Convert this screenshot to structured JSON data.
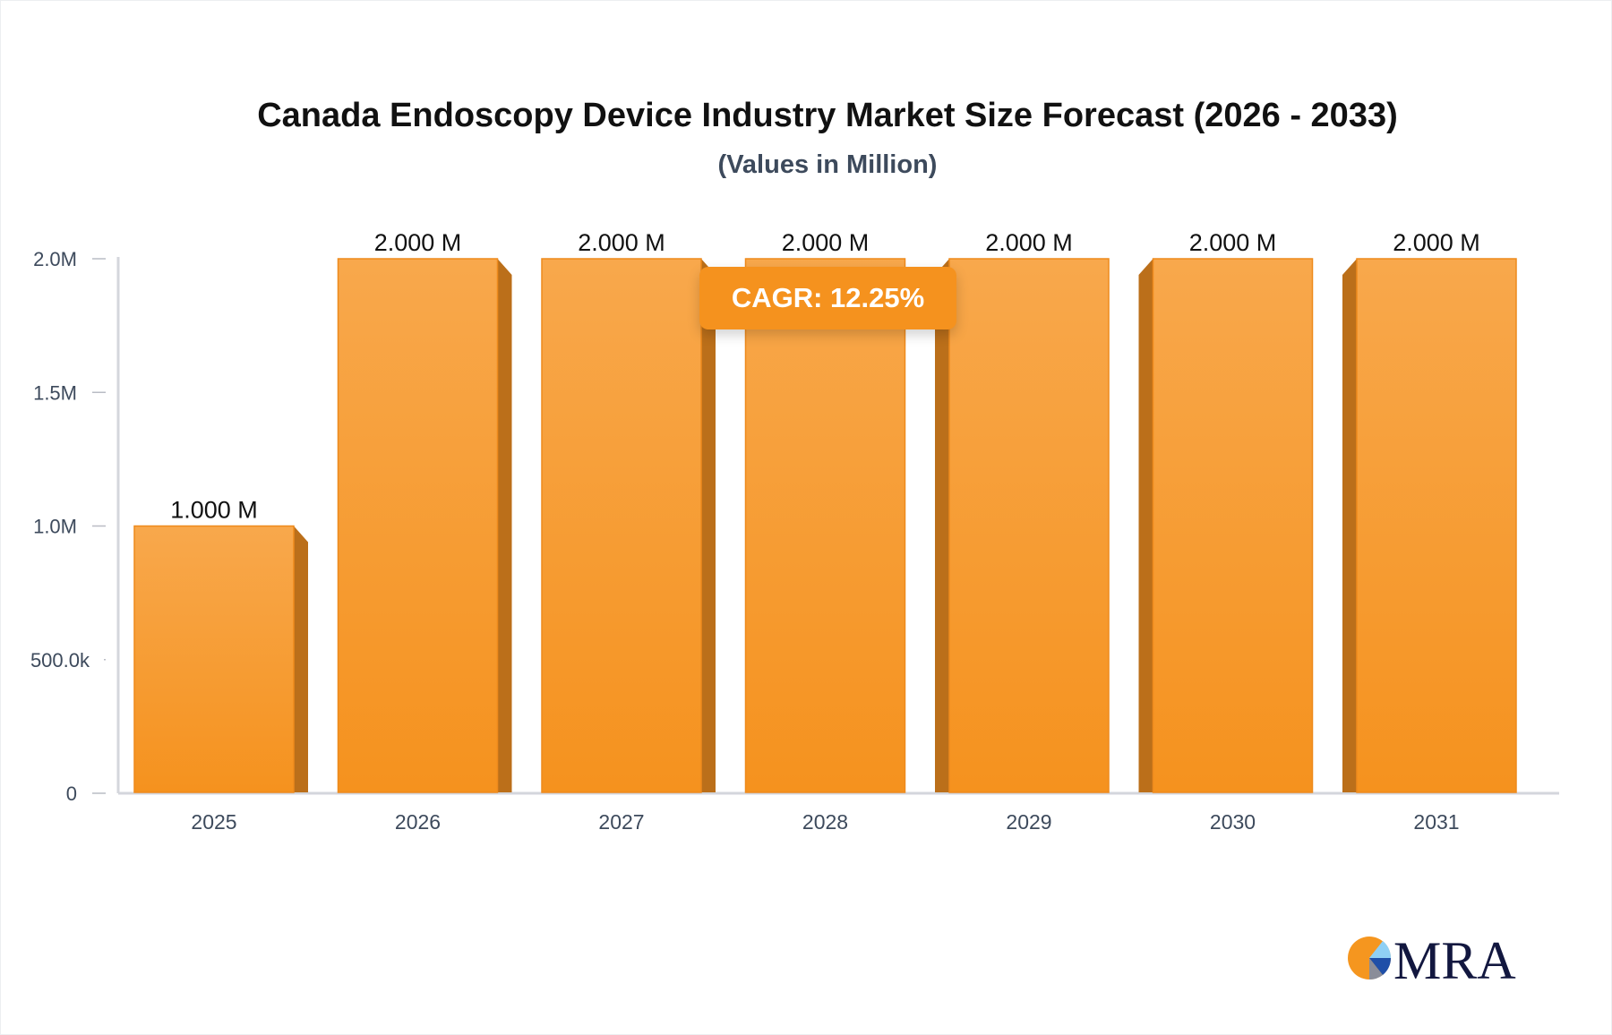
{
  "chart_data": {
    "type": "bar",
    "title": "Canada Endoscopy Device Industry Market Size Forecast (2026 - 2033)",
    "subtitle": "(Values in Million)",
    "categories": [
      "2025",
      "2026",
      "2027",
      "2028",
      "2029",
      "2030",
      "2031"
    ],
    "values": [
      1000000,
      2000000,
      2000000,
      2000000,
      2000000,
      2000000,
      2000000
    ],
    "data_labels": [
      "1.000 M",
      "2.000 M",
      "2.000 M",
      "2.000 M",
      "2.000 M",
      "2.000 M",
      "2.000 M"
    ],
    "y_ticks": [
      0,
      500000,
      1000000,
      1500000,
      2000000
    ],
    "y_tick_labels": [
      "0",
      "500.0k",
      "1.0M",
      "1.5M",
      "2.0M"
    ],
    "ylim": [
      0,
      2000000
    ],
    "xlabel": "",
    "ylabel": "",
    "grid": false,
    "annotation": "CAGR: 12.25%",
    "colors": {
      "bar": "#f5921e",
      "bar_top": "#f8a84c",
      "bar_side": "#bb6f1a",
      "axis": "#d4d6dc",
      "badge": "#f5921e"
    }
  },
  "logo": {
    "text": "MRA"
  }
}
